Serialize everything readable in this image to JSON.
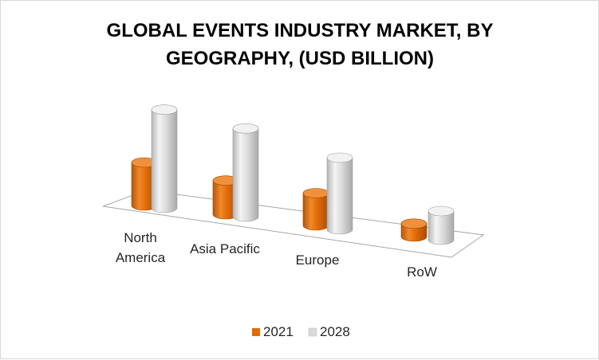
{
  "chart_data": {
    "type": "bar",
    "style": "3d-cylinder",
    "title_lines": [
      "GLOBAL EVENTS INDUSTRY MARKET, BY",
      "GEOGRAPHY, (USD BILLION)"
    ],
    "categories": [
      [
        "North",
        "America"
      ],
      [
        "Asia Pacific"
      ],
      [
        "Europe"
      ],
      [
        "RoW"
      ]
    ],
    "series": [
      {
        "name": "2021",
        "values": [
          60,
          47,
          45,
          18
        ],
        "color": "#e36c09"
      },
      {
        "name": "2028",
        "values": [
          137,
          123,
          100,
          40
        ],
        "color": "#d9d9d9"
      }
    ],
    "ylim": [
      0,
      150
    ],
    "grid": false,
    "legend_position": "bottom"
  }
}
